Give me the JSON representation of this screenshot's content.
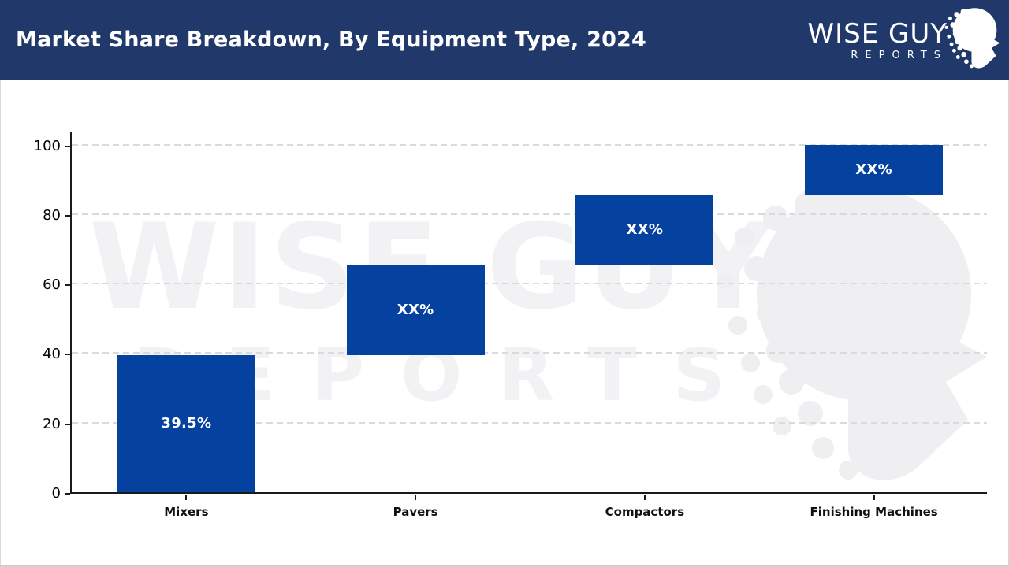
{
  "header": {
    "title": "Market Share Breakdown, By Equipment Type, 2024",
    "logo": {
      "line1": "WISE GUY",
      "line2": "REPORTS"
    }
  },
  "watermark": {
    "line1": "WISE GUY",
    "line2": "REPORTS"
  },
  "colors": {
    "header_bg": "#20386a",
    "bar": "#05419f",
    "bar_label": "#ffffff",
    "gridline": "#dadada",
    "axis": "#1a1a1a",
    "watermark": "#f2f2f5"
  },
  "chart_data": {
    "type": "bar",
    "subtype": "waterfall-floating-bars",
    "title": "Market Share Breakdown, By Equipment Type, 2024",
    "categories": [
      "Mixers",
      "Pavers",
      "Compactors",
      "Finishing Machines"
    ],
    "bars": [
      {
        "category": "Mixers",
        "start": 0,
        "end": 39.5,
        "size": 39.5,
        "label": "39.5%"
      },
      {
        "category": "Pavers",
        "start": 39.5,
        "end": 65.5,
        "size": 26.0,
        "label": "XX%"
      },
      {
        "category": "Compactors",
        "start": 65.5,
        "end": 85.5,
        "size": 20.0,
        "label": "XX%"
      },
      {
        "category": "Finishing Machines",
        "start": 85.5,
        "end": 100,
        "size": 14.5,
        "label": "XX%"
      }
    ],
    "xlabel": "",
    "ylabel": "",
    "ylim": [
      0,
      104
    ],
    "yticks": [
      0,
      20,
      40,
      60,
      80,
      100
    ],
    "grid": "horizontal-dashed",
    "legend": false
  }
}
